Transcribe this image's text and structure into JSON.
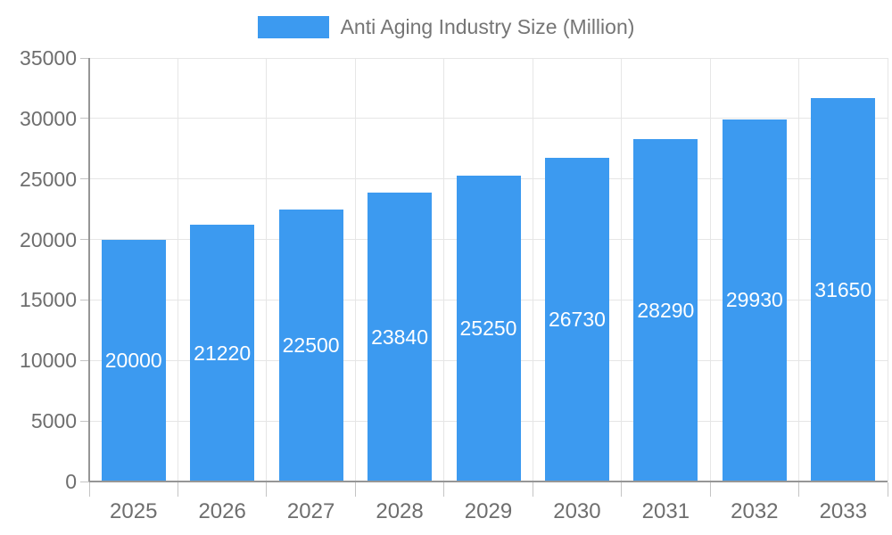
{
  "legend": {
    "label": "Anti Aging Industry Size (Million)"
  },
  "chart_data": {
    "type": "bar",
    "title": "Anti Aging Industry Size (Million)",
    "categories": [
      "2025",
      "2026",
      "2027",
      "2028",
      "2029",
      "2030",
      "2031",
      "2032",
      "2033"
    ],
    "values": [
      20000,
      21220,
      22500,
      23840,
      25250,
      26730,
      28290,
      29930,
      31650
    ],
    "xlabel": "",
    "ylabel": "",
    "ylim": [
      0,
      35000
    ],
    "yticks": [
      0,
      5000,
      10000,
      15000,
      20000,
      25000,
      30000,
      35000
    ],
    "grid": true,
    "legend_position": "top",
    "value_labels": "inside-center",
    "colors": {
      "bar": "#3c9af0",
      "value_label": "#ffffff",
      "grid": "#e6e6e6",
      "axis": "#969696",
      "tick": "#c4c4c4",
      "axis_text": "#6e6e6e",
      "legend_text": "#757575"
    }
  }
}
